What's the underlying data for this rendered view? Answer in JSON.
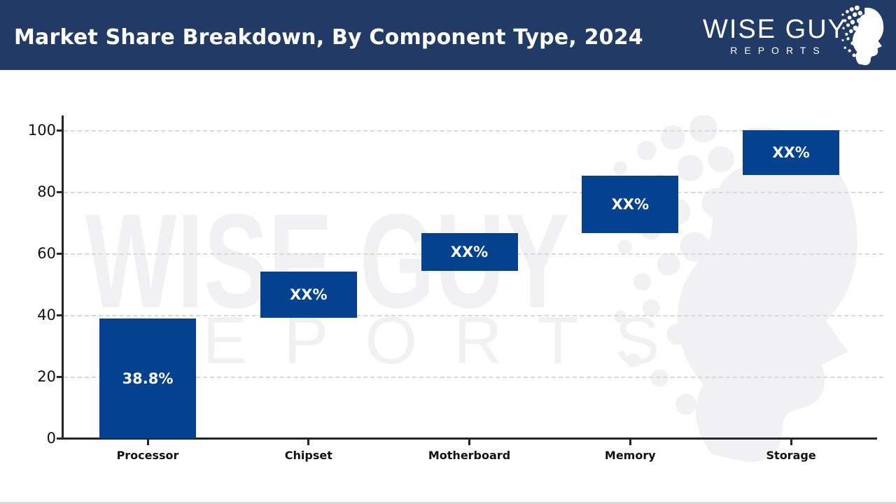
{
  "header": {
    "title": "Market Share Breakdown, By Component Type, 2024",
    "logo": {
      "line1": "WISE GUY",
      "line2": "REPORTS"
    }
  },
  "watermark": {
    "line1": "WISE GUY",
    "line2": "REPORTS"
  },
  "colors": {
    "header_bg": "#213A66",
    "bar": "#04418F",
    "grid": "#D9D9D9",
    "axis": "#262626",
    "bar_label_text": "#FFFFFF",
    "tick_text": "#111111",
    "watermark": "#F1F1F4"
  },
  "chart_data": {
    "type": "bar",
    "subtype": "waterfall",
    "title": "Market Share Breakdown, By Component Type, 2024",
    "categories": [
      "Processor",
      "Chipset",
      "Motherboard",
      "Memory",
      "Storage"
    ],
    "segments": [
      {
        "category": "Processor",
        "start": 0,
        "end": 38.8,
        "label": "38.8%"
      },
      {
        "category": "Chipset",
        "start": 39,
        "end": 54,
        "label": "XX%"
      },
      {
        "category": "Motherboard",
        "start": 54.3,
        "end": 66.6,
        "label": "XX%"
      },
      {
        "category": "Memory",
        "start": 66.6,
        "end": 85.2,
        "label": "XX%"
      },
      {
        "category": "Storage",
        "start": 85.5,
        "end": 100,
        "label": "XX%"
      }
    ],
    "yticks": [
      0,
      20,
      40,
      60,
      80,
      100
    ],
    "ylim": [
      0,
      104
    ],
    "xlabel": "",
    "ylabel": "",
    "grid": "horizontal-dashed",
    "legend": "none",
    "bar_color": "#04418F"
  }
}
